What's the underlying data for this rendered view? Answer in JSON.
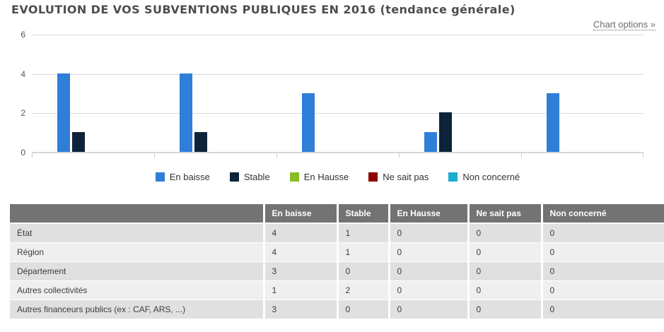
{
  "title": "EVOLUTION DE VOS SUBVENTIONS PUBLIQUES EN 2016 (tendance générale)",
  "chart_options_label": "Chart options »",
  "chart_data": {
    "type": "bar",
    "title": "",
    "xlabel": "",
    "ylabel": "",
    "ylim": [
      0,
      6
    ],
    "yticks": [
      0,
      2,
      4,
      6
    ],
    "grid": true,
    "legend_position": "bottom-center",
    "categories": [
      "État",
      "Région",
      "Département",
      "Autres collectivités",
      "Autres financeurs publics (ex : CAF, ARS, ...)"
    ],
    "series": [
      {
        "name": "En baisse",
        "color": "#2f7ed8",
        "values": [
          4,
          4,
          3,
          1,
          3
        ]
      },
      {
        "name": "Stable",
        "color": "#0d233a",
        "values": [
          1,
          1,
          0,
          2,
          0
        ]
      },
      {
        "name": "En Hausse",
        "color": "#8bbc21",
        "values": [
          0,
          0,
          0,
          0,
          0
        ]
      },
      {
        "name": "Ne sait pas",
        "color": "#910000",
        "values": [
          0,
          0,
          0,
          0,
          0
        ]
      },
      {
        "name": "Non concerné",
        "color": "#1aadce",
        "values": [
          0,
          0,
          0,
          0,
          0
        ]
      }
    ]
  },
  "table": {
    "columns": [
      "",
      "En baisse",
      "Stable",
      "En Hausse",
      "Ne sait pas",
      "Non concerné"
    ],
    "rows": [
      {
        "label": "État",
        "values": [
          4,
          1,
          0,
          0,
          0
        ]
      },
      {
        "label": "Région",
        "values": [
          4,
          1,
          0,
          0,
          0
        ]
      },
      {
        "label": "Département",
        "values": [
          3,
          0,
          0,
          0,
          0
        ]
      },
      {
        "label": "Autres collectivités",
        "values": [
          1,
          2,
          0,
          0,
          0
        ]
      },
      {
        "label": "Autres financeurs publics (ex : CAF, ARS, ...)",
        "values": [
          3,
          0,
          0,
          0,
          0
        ]
      }
    ]
  }
}
